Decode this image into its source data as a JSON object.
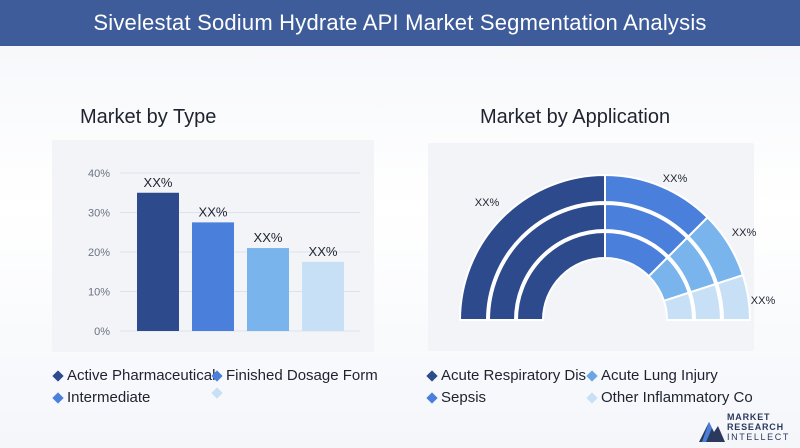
{
  "header": {
    "title": "Sivelestat Sodium Hydrate API Market Segmentation Analysis"
  },
  "left": {
    "title": "Market by Type",
    "legend": [
      {
        "label": "Active Pharmaceutical",
        "color": "#2d4a8c"
      },
      {
        "label": "Finished Dosage Form",
        "color": "#4a7fdc"
      },
      {
        "label": "Intermediate",
        "color": "#4a7fdc"
      },
      {
        "label": "",
        "color": "#c8e0f5"
      }
    ]
  },
  "right": {
    "title": "Market by Application",
    "legend": [
      {
        "label": "Acute Respiratory Dis",
        "color": "#2d4a8c"
      },
      {
        "label": "Acute Lung Injury",
        "color": "#6aa6e6"
      },
      {
        "label": "Sepsis",
        "color": "#4a7fdc"
      },
      {
        "label": "Other Inflammatory Co",
        "color": "#c8e0f5"
      }
    ]
  },
  "logo": {
    "line1": "MARKET",
    "line2": "RESEARCH",
    "line3": "INTELLECT"
  },
  "chart_data": [
    {
      "type": "bar",
      "categories": [
        "Active Pharmaceutical",
        "Finished Dosage Form",
        "Intermediate",
        ""
      ],
      "values": [
        35,
        27.5,
        21,
        17.5
      ],
      "data_labels": [
        "XX%",
        "XX%",
        "XX%",
        "XX%"
      ],
      "colors": [
        "#2d4a8c",
        "#4a7fdc",
        "#7ab4ec",
        "#c8e0f5"
      ],
      "ytick_labels": [
        "0%",
        "10%",
        "20%",
        "30%",
        "40%"
      ],
      "ylim": [
        0,
        40
      ],
      "grid": true
    },
    {
      "type": "pie",
      "style": "semi-donut",
      "categories": [
        "Acute Respiratory Dis",
        "Acute Lung Injury",
        "Sepsis",
        "Other Inflammatory Co"
      ],
      "values": [
        50,
        25,
        15,
        10
      ],
      "data_labels": [
        "XX%",
        "XX%",
        "XX%",
        "XX%"
      ],
      "colors": [
        "#2d4a8c",
        "#4a7fdc",
        "#7ab4ec",
        "#c8e0f5"
      ]
    }
  ]
}
